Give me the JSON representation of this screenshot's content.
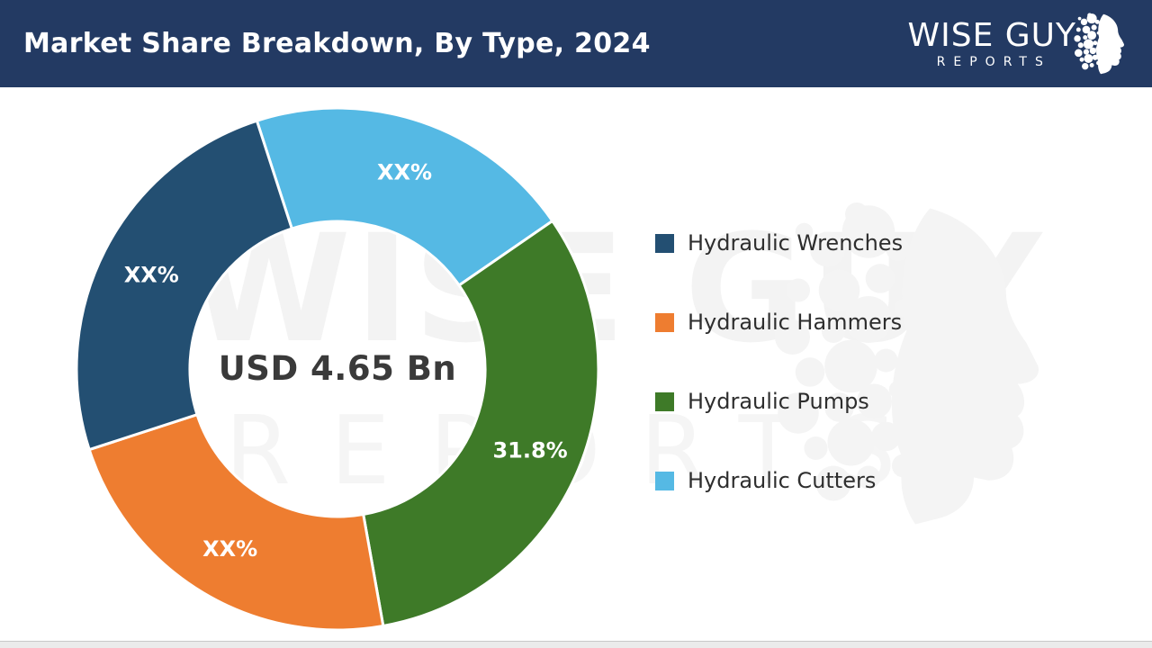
{
  "header": {
    "title": "Market Share Breakdown, By Type, 2024",
    "logo": {
      "line1": "WISE GUY",
      "line2": "REPORTS"
    }
  },
  "watermark": {
    "line1": "WISE GUY",
    "line2": "REPORTS"
  },
  "colors": {
    "header_bg": "#233A63",
    "wrenches_blue": "#234F72",
    "hammers_orange": "#EE7D30",
    "pumps_green": "#3E7A28",
    "cutters_lightblue": "#55B9E4"
  },
  "chart_data": {
    "type": "pie",
    "subtype": "donut",
    "title": "Market Share Breakdown, By Type, 2024",
    "center_label": "USD 4.65 Bn",
    "start_angle_deg": -18,
    "legend_position": "right",
    "segments": [
      {
        "name": "Hydraulic Cutters",
        "value_pct": 20.4,
        "display_label": "XX%",
        "color": "#55B9E4"
      },
      {
        "name": "Hydraulic Pumps",
        "value_pct": 31.8,
        "display_label": "31.8%",
        "color": "#3E7A28"
      },
      {
        "name": "Hydraulic Hammers",
        "value_pct": 22.8,
        "display_label": "XX%",
        "color": "#EE7D30"
      },
      {
        "name": "Hydraulic Wrenches",
        "value_pct": 25.0,
        "display_label": "XX%",
        "color": "#234F72"
      }
    ],
    "legend": [
      {
        "label": "Hydraulic Wrenches",
        "color": "#234F72"
      },
      {
        "label": "Hydraulic Hammers",
        "color": "#EE7D30"
      },
      {
        "label": "Hydraulic Pumps",
        "color": "#3E7A28"
      },
      {
        "label": "Hydraulic Cutters",
        "color": "#55B9E4"
      }
    ]
  }
}
